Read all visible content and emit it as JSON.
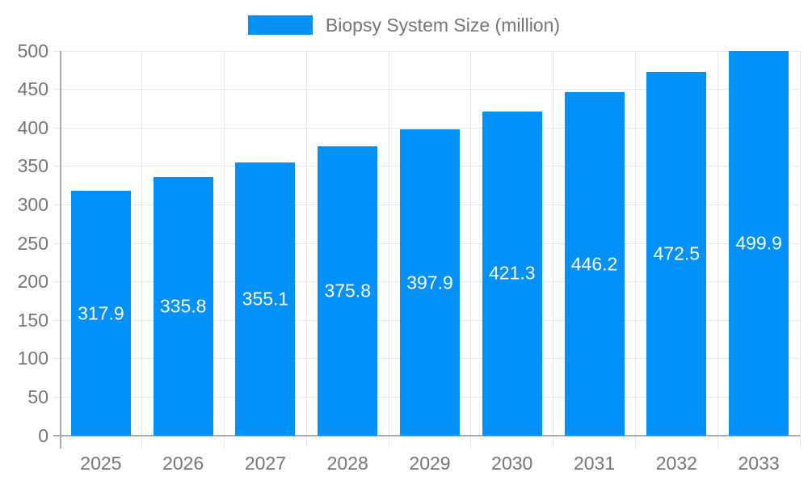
{
  "legend": {
    "label": "Biopsy System Size (million)"
  },
  "chart_data": {
    "type": "bar",
    "title": "Biopsy System Size (million)",
    "series_name": "Biopsy System Size (million)",
    "categories": [
      "2025",
      "2026",
      "2027",
      "2028",
      "2029",
      "2030",
      "2031",
      "2032",
      "2033"
    ],
    "values": [
      317.9,
      335.8,
      355.1,
      375.8,
      397.9,
      421.3,
      446.2,
      472.5,
      499.9
    ],
    "value_labels": [
      "317.9",
      "335.8",
      "355.1",
      "375.8",
      "397.9",
      "421.3",
      "446.2",
      "472.5",
      "499.9"
    ],
    "xlabel": "",
    "ylabel": "",
    "ylim": [
      0,
      500
    ],
    "y_tick_step": 50,
    "y_ticks": [
      0,
      50,
      100,
      150,
      200,
      250,
      300,
      350,
      400,
      450,
      500
    ],
    "grid": true,
    "legend_position": "top",
    "colors": {
      "bar": "#0291f8",
      "bar_value_label": "#ffffff",
      "axis_text": "#757575",
      "legend_text": "#757575",
      "gridline": "#e6e6e6",
      "axis_line": "#ababab",
      "background": "#ffffff"
    }
  }
}
